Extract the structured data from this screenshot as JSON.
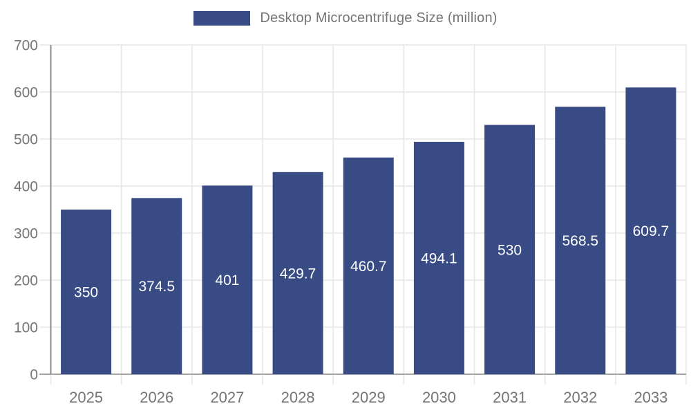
{
  "chart_data": {
    "type": "bar",
    "title": "Desktop Microcentrifuge Size (million)",
    "legend": "Desktop Microcentrifuge Size (million)",
    "legend_position": "top-center",
    "categories": [
      "2025",
      "2026",
      "2027",
      "2028",
      "2029",
      "2030",
      "2031",
      "2032",
      "2033"
    ],
    "values": [
      350,
      374.5,
      401,
      429.7,
      460.7,
      494.1,
      530,
      568.5,
      609.7
    ],
    "value_labels": [
      "350",
      "374.5",
      "401",
      "429.7",
      "460.7",
      "494.1",
      "530",
      "568.5",
      "609.7"
    ],
    "xlabel": "",
    "ylabel": "",
    "ylim": [
      0,
      700
    ],
    "yticks": [
      0,
      100,
      200,
      300,
      400,
      500,
      600,
      700
    ],
    "grid": true,
    "colors": {
      "bar": "#394b85",
      "bar_label": "#ffffff",
      "y_axis_line": "#8c8c8c",
      "x_axis_line": "#a6a6a6",
      "gridline": "#e6e6e6",
      "tick_text": "#757575",
      "background": "#ffffff"
    }
  }
}
